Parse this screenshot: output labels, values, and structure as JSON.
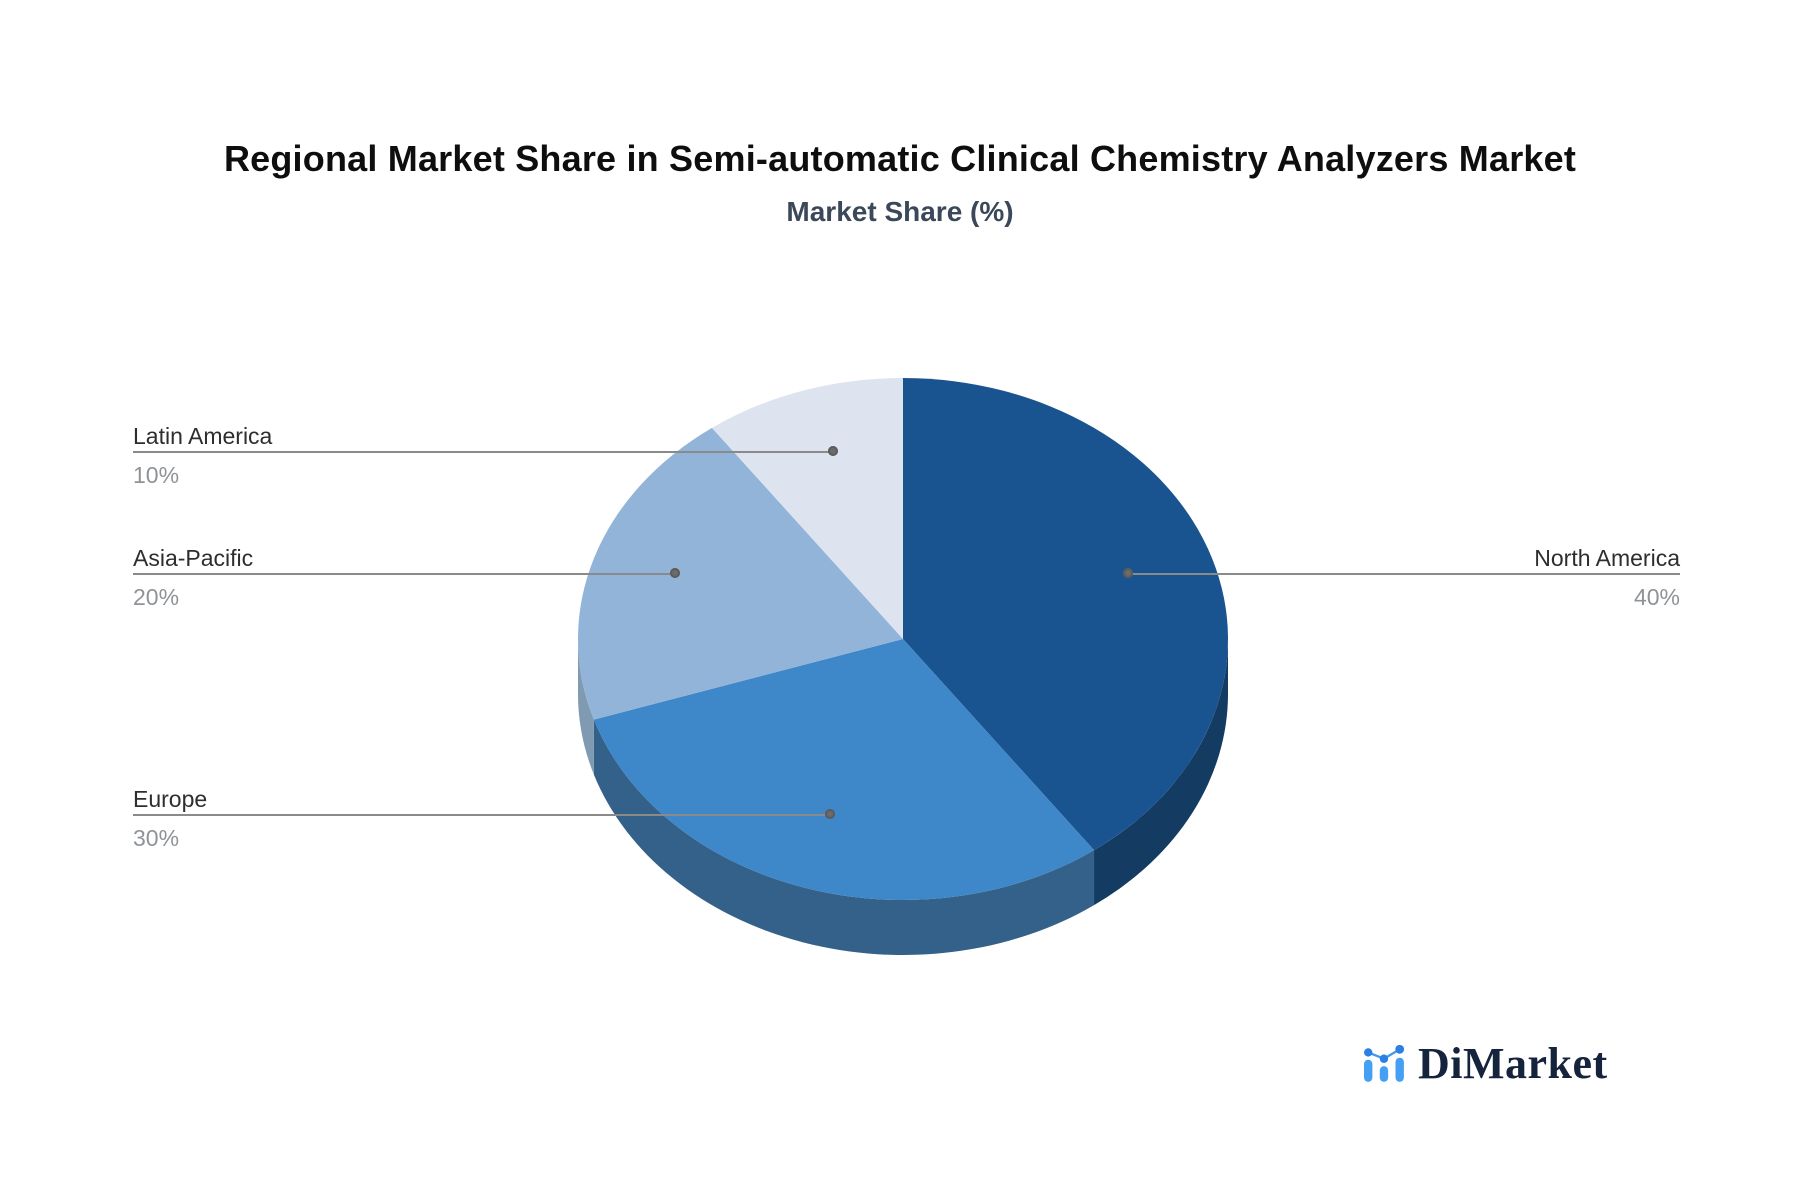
{
  "title": "Regional Market Share in Semi-automatic Clinical Chemistry Analyzers Market",
  "subtitle": "Market Share (%)",
  "brand": {
    "name": "DiMarket",
    "icon": "bar-chart-logo-icon",
    "text_color": "#16233c",
    "bar_color": "#45a0f4",
    "dot_color": "#2c80e4"
  },
  "chart_data": {
    "type": "pie",
    "style": "3d",
    "title": "Regional Market Share in Semi-automatic Clinical Chemistry Analyzers Market",
    "subtitle": "Market Share (%)",
    "unit": "%",
    "start_angle_deg": -90,
    "direction": "clockwise",
    "legend_position": "callout-labels",
    "categories": [
      "North America",
      "Europe",
      "Asia-Pacific",
      "Latin America"
    ],
    "values": [
      40,
      30,
      20,
      10
    ],
    "colors": [
      "#1a5490",
      "#3e87c8",
      "#92b4d9",
      "#dde4ef"
    ],
    "side_colors": [
      "#143c63",
      "#336189",
      "#7f9ab1",
      "#c9d2e0"
    ],
    "labels": [
      {
        "name": "North America",
        "value_label": "40%",
        "side": "right"
      },
      {
        "name": "Europe",
        "value_label": "30%",
        "side": "left"
      },
      {
        "name": "Asia-Pacific",
        "value_label": "20%",
        "side": "left"
      },
      {
        "name": "Latin America",
        "value_label": "10%",
        "side": "left"
      }
    ],
    "leader_line_color": "#8a8a8a",
    "label_text_color": "#2e2e2e",
    "value_text_color": "#8f9398"
  }
}
